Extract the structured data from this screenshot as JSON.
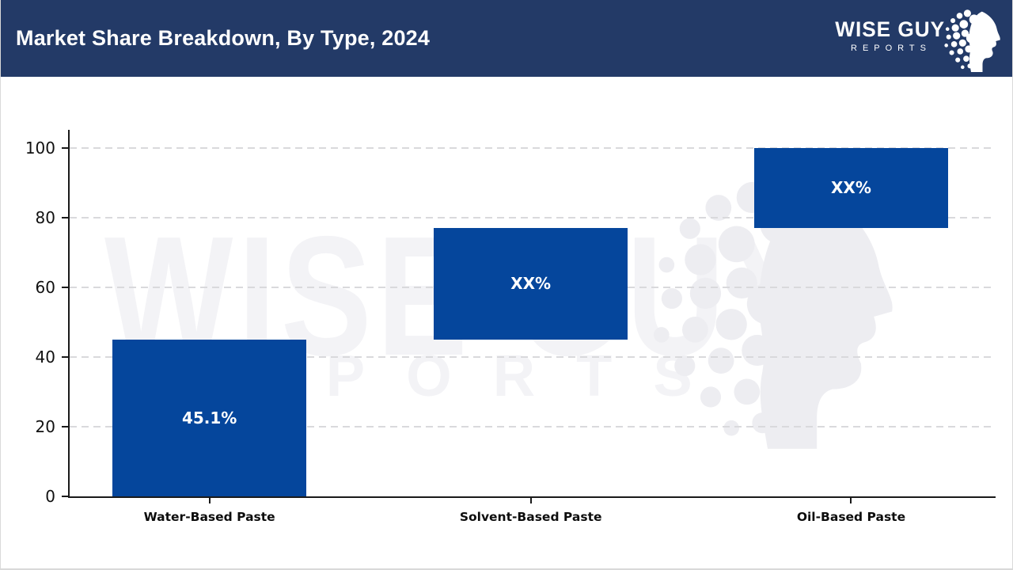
{
  "header": {
    "title": "Market Share Breakdown, By Type, 2024",
    "bg_color": "#233a67",
    "logo": {
      "line1": "WISE GUY",
      "line2": "REPORTS"
    }
  },
  "watermark": {
    "line1": "WISE GUY",
    "line2": "REPORTS"
  },
  "chart_data": {
    "type": "bar",
    "subtype": "waterfall",
    "title": "Market Share Breakdown, By Type, 2024",
    "categories": [
      "Water-Based Paste",
      "Solvent-Based Paste",
      "Oil-Based Paste"
    ],
    "bars": [
      {
        "category": "Water-Based Paste",
        "label": "45.1%",
        "start": 0,
        "end": 45.1
      },
      {
        "category": "Solvent-Based Paste",
        "label": "XX%",
        "start": 45.1,
        "end": 77.1
      },
      {
        "category": "Oil-Based Paste",
        "label": "XX%",
        "start": 77.1,
        "end": 100
      }
    ],
    "yticks": [
      0,
      20,
      40,
      60,
      80,
      100
    ],
    "ylim": [
      0,
      105
    ],
    "xlabel": "",
    "ylabel": "",
    "bar_color": "#05469c",
    "grid": true,
    "gridline_style": "dashed",
    "legend": "none"
  }
}
